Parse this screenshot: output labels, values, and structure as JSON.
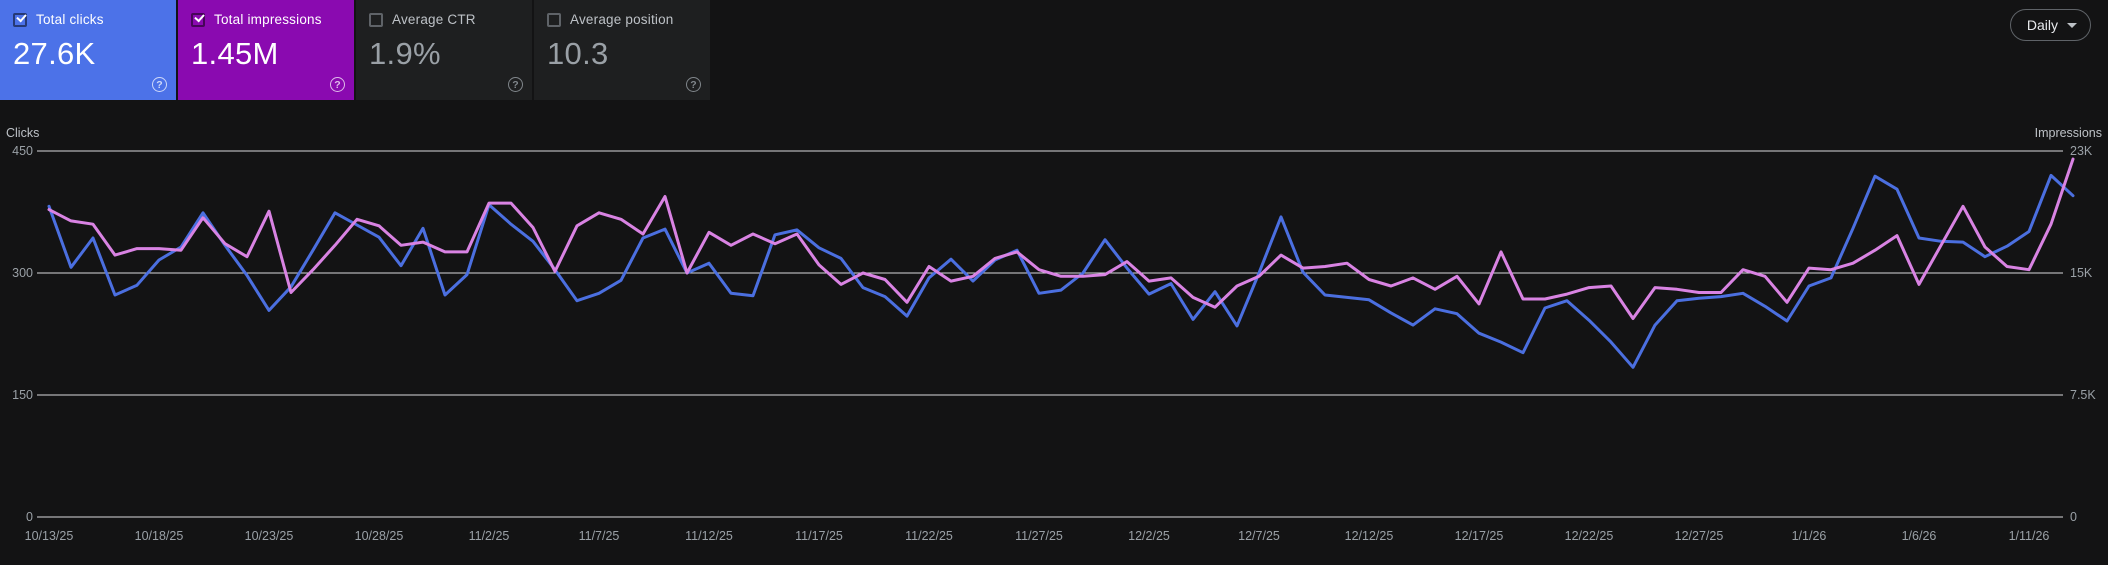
{
  "cards": [
    {
      "id": "total-clicks",
      "label": "Total clicks",
      "value": "27.6K",
      "checked": true,
      "accent": "#4c72e8",
      "help_icon": "question-mark-circle"
    },
    {
      "id": "total-impressions",
      "label": "Total impressions",
      "value": "1.45M",
      "checked": true,
      "accent": "#8a0ab0",
      "help_icon": "question-mark-circle"
    },
    {
      "id": "average-ctr",
      "label": "Average CTR",
      "value": "1.9%",
      "checked": false,
      "accent": "#1e1f20",
      "help_icon": "question-mark-circle"
    },
    {
      "id": "average-position",
      "label": "Average position",
      "value": "10.3",
      "checked": false,
      "accent": "#1e1f20",
      "help_icon": "question-mark-circle"
    }
  ],
  "granularity_button": {
    "label": "Daily",
    "icon": "chevron-down-icon"
  },
  "chart_data": {
    "type": "line",
    "grid": true,
    "legend_position": "none",
    "x_start_date": "10/13/25",
    "x_tick_labels": [
      "10/13/25",
      "10/18/25",
      "10/23/25",
      "10/28/25",
      "11/2/25",
      "11/7/25",
      "11/12/25",
      "11/17/25",
      "11/22/25",
      "11/27/25",
      "12/2/25",
      "12/7/25",
      "12/12/25",
      "12/17/25",
      "12/22/25",
      "12/27/25",
      "1/1/26",
      "1/6/26",
      "1/11/26"
    ],
    "left_axis": {
      "title": "Clicks",
      "tick_labels": [
        "450",
        "300",
        "150",
        "0"
      ],
      "range": [
        0,
        450
      ]
    },
    "right_axis": {
      "title": "Impressions",
      "tick_labels": [
        "23K",
        "15K",
        "7.5K",
        "0"
      ],
      "range": [
        0,
        22500
      ]
    },
    "series": [
      {
        "name": "Total clicks",
        "axis": "left",
        "color": "#4b6fe0",
        "values": [
          382,
          307,
          343,
          273,
          285,
          316,
          332,
          374,
          334,
          297,
          254,
          283,
          328,
          374,
          359,
          344,
          309,
          355,
          273,
          298,
          384,
          360,
          339,
          304,
          266,
          275,
          291,
          343,
          354,
          300,
          312,
          275,
          272,
          347,
          353,
          331,
          318,
          282,
          271,
          247,
          294,
          317,
          290,
          316,
          328,
          275,
          279,
          300,
          341,
          306,
          274,
          287,
          243,
          277,
          235,
          300,
          369,
          301,
          273,
          270,
          267,
          251,
          236,
          256,
          250,
          226,
          215,
          202,
          257,
          266,
          242,
          215,
          184,
          236,
          266,
          269,
          271,
          275,
          259,
          241,
          284,
          294,
          355,
          419,
          403,
          343,
          339,
          338,
          320,
          333,
          351,
          420,
          395
        ]
      },
      {
        "name": "Total impressions",
        "axis": "right",
        "color": "#d983e3",
        "values": [
          18900,
          18200,
          18000,
          16100,
          16500,
          16500,
          16400,
          18400,
          16800,
          16000,
          18800,
          13800,
          15200,
          16700,
          18300,
          17900,
          16700,
          16900,
          16300,
          16300,
          19300,
          19300,
          17800,
          15100,
          17900,
          18700,
          18300,
          17400,
          19700,
          15000,
          17500,
          16700,
          17400,
          16800,
          17400,
          15500,
          14300,
          15000,
          14600,
          13200,
          15400,
          14500,
          14800,
          15900,
          16300,
          15200,
          14800,
          14800,
          14900,
          15700,
          14500,
          14700,
          13500,
          12900,
          14200,
          14800,
          16100,
          15300,
          15400,
          15600,
          14600,
          14200,
          14700,
          14000,
          14800,
          13100,
          16300,
          13400,
          13400,
          13700,
          14100,
          14200,
          12200,
          14100,
          14000,
          13800,
          13800,
          15200,
          14800,
          13200,
          15300,
          15200,
          15600,
          16400,
          17300,
          14300,
          16700,
          19100,
          16600,
          15400,
          15200,
          18000,
          22000
        ]
      }
    ]
  }
}
